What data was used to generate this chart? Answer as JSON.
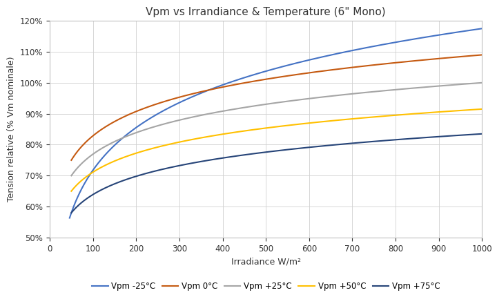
{
  "title": "Vpm vs Irrandiance & Temperature (6\" Mono)",
  "xlabel": "Irradiance W/m²",
  "ylabel": "Tension relative (% Vm nominale)",
  "xlim": [
    0,
    1000
  ],
  "ylim": [
    50,
    120
  ],
  "yticks": [
    50,
    60,
    70,
    80,
    90,
    100,
    110,
    120
  ],
  "xticks": [
    0,
    100,
    200,
    300,
    400,
    500,
    600,
    700,
    800,
    900,
    1000
  ],
  "series": [
    {
      "label": "Vpm -25°C",
      "color": "#4472C4",
      "V_sat": 117.5,
      "V_at50": 58.0,
      "G_start": 46
    },
    {
      "label": "Vpm 0°C",
      "color": "#C55A11",
      "V_sat": 109.0,
      "V_at50": 75.0,
      "G_start": 50
    },
    {
      "label": "Vpm +25°C",
      "color": "#A5A5A5",
      "V_sat": 100.0,
      "V_at50": 70.0,
      "G_start": 50
    },
    {
      "label": "Vpm +50°C",
      "color": "#FFC000",
      "V_sat": 91.5,
      "V_at50": 65.0,
      "G_start": 50
    },
    {
      "label": "Vpm +75°C",
      "color": "#264478",
      "V_sat": 83.5,
      "V_at50": 58.0,
      "G_start": 50
    }
  ],
  "title_fontsize": 11,
  "label_fontsize": 9,
  "tick_fontsize": 8.5,
  "legend_fontsize": 8.5,
  "bg_color": "#F2F2F2"
}
